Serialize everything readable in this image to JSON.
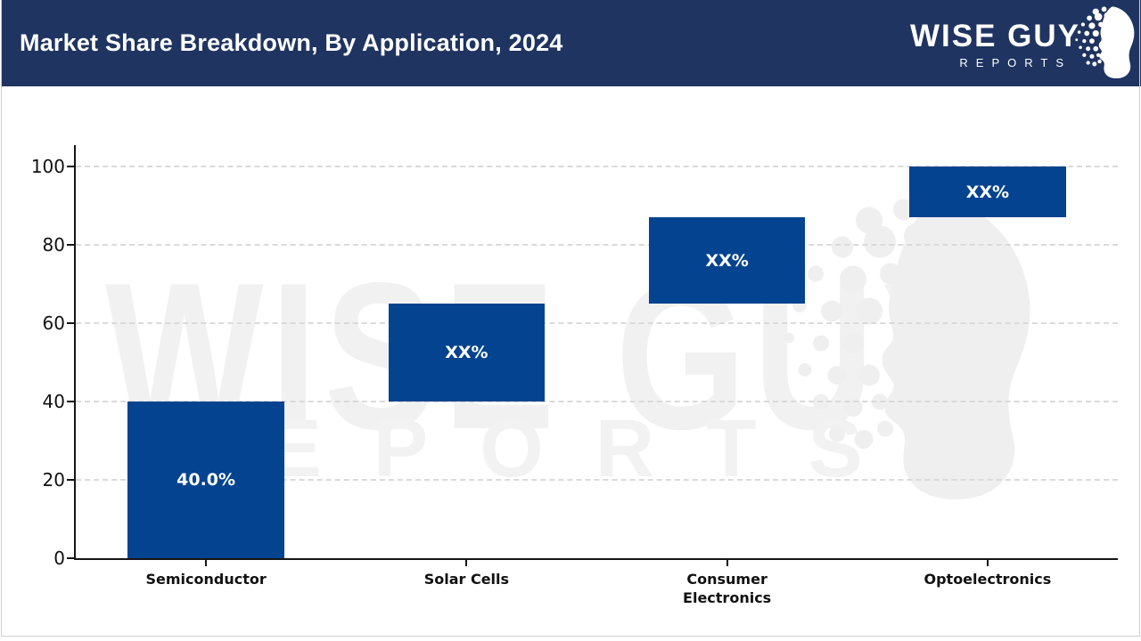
{
  "header": {
    "title": "Market Share Breakdown, By Application, 2024",
    "logo_line1": "WISE GUY",
    "logo_line2": "REPORTS"
  },
  "watermark": {
    "line1": "WISE GUY",
    "line2": "REPORTS"
  },
  "colors": {
    "header_bg": "#1f3460",
    "bar_blue": "#04438f",
    "grid_gray": "#dadada",
    "axis_black": "#151515",
    "watermark_gray": "#f1f1f1",
    "title_text": "#ffffff",
    "bar_label_text": "#ffffff"
  },
  "chart_data": {
    "type": "bar",
    "subtype": "waterfall",
    "title": "Market Share Breakdown, By Application, 2024",
    "categories": [
      "Semiconductor",
      "Solar Cells",
      "Consumer\nElectronics",
      "Optoelectronics"
    ],
    "series": [
      {
        "name": "Market Share",
        "segments": [
          {
            "category": "Semiconductor",
            "start": 0,
            "end": 40,
            "label": "40.0%"
          },
          {
            "category": "Solar Cells",
            "start": 40,
            "end": 65,
            "label": "XX%"
          },
          {
            "category": "Consumer Electronics",
            "start": 65,
            "end": 87,
            "label": "XX%"
          },
          {
            "category": "Optoelectronics",
            "start": 87,
            "end": 100,
            "label": "XX%"
          }
        ]
      }
    ],
    "xlabel": "",
    "ylabel": "",
    "ylim": [
      0,
      105.5
    ],
    "yticks": [
      0,
      20,
      40,
      60,
      80,
      100
    ],
    "grid": "horizontal-dashed",
    "legend": "none",
    "bar_color": "#04438f",
    "value_label_color": "#ffffff"
  }
}
